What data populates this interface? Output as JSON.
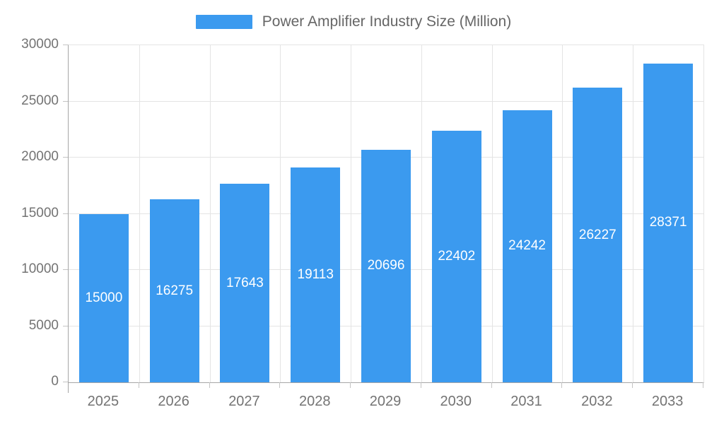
{
  "chart_data": {
    "type": "bar",
    "title": "Power Amplifier Industry Size (Million)",
    "categories": [
      "2025",
      "2026",
      "2027",
      "2028",
      "2029",
      "2030",
      "2031",
      "2032",
      "2033"
    ],
    "values": [
      15000,
      16275,
      17643,
      19113,
      20696,
      22402,
      24242,
      26227,
      28371
    ],
    "value_labels": [
      "15000",
      "16275",
      "17643",
      "19113",
      "20696",
      "22402",
      "24242",
      "26227",
      "28371"
    ],
    "xlabel": "",
    "ylabel": "",
    "ylim": [
      0,
      30000
    ],
    "yticks": [
      0,
      5000,
      10000,
      15000,
      20000,
      25000,
      30000
    ],
    "ytick_labels": [
      "0",
      "5000",
      "10000",
      "15000",
      "20000",
      "25000",
      "30000"
    ],
    "grid": true,
    "legend_position": "top-center",
    "legend_entries": [
      "Power Amplifier Industry Size (Million)"
    ],
    "colors": {
      "bar": "#3B9AEF",
      "bar_label_text": "#FFFFFF",
      "axis_line": "#A6A6A6",
      "grid_line": "#E4E4E4",
      "tick_line": "#C4C4C4",
      "axis_text": "#737373",
      "legend_text": "#666666",
      "background": "#FFFFFF"
    }
  }
}
